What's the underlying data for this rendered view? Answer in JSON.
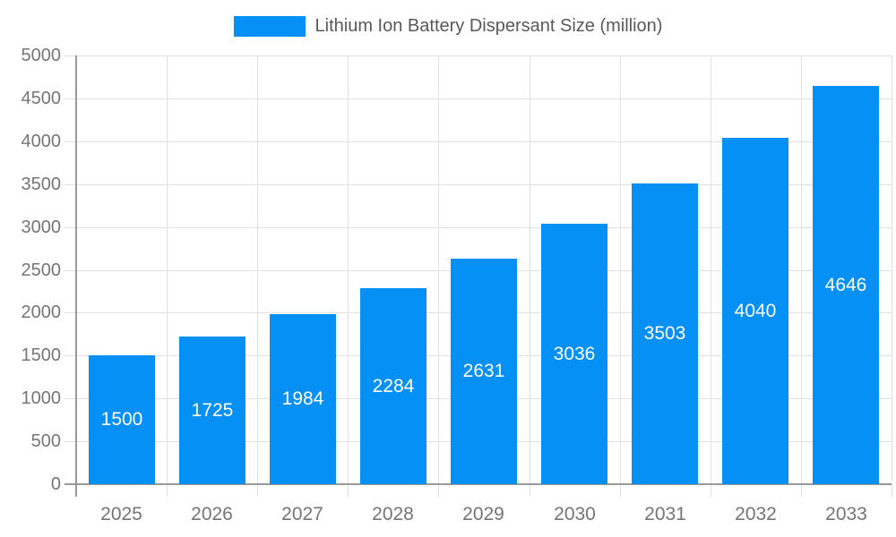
{
  "legend": {
    "label": "Lithium Ion Battery Dispersant Size (million)"
  },
  "chart_data": {
    "type": "bar",
    "title": "Lithium Ion Battery Dispersant Size (million)",
    "categories": [
      "2025",
      "2026",
      "2027",
      "2028",
      "2029",
      "2030",
      "2031",
      "2032",
      "2033"
    ],
    "series": [
      {
        "name": "Lithium Ion Battery Dispersant Size (million)",
        "values": [
          1500,
          1725,
          1984,
          2284,
          2631,
          3036,
          3503,
          4040,
          4646
        ]
      }
    ],
    "value_labels": [
      "1500",
      "1725",
      "1984",
      "2284",
      "2631",
      "3036",
      "3503",
      "4040",
      "4646"
    ],
    "xlabel": "",
    "ylabel": "",
    "ylim": [
      0,
      5000
    ],
    "yticks": [
      0,
      500,
      1000,
      1500,
      2000,
      2500,
      3000,
      3500,
      4000,
      4500,
      5000
    ],
    "grid": true,
    "legend_position": "top-center",
    "colors": {
      "bar": "#0590f5",
      "grid": "#e0e0e0",
      "axis": "#999999",
      "tick_label": "#757575",
      "legend_text": "#595959",
      "value_label": "#ffffff",
      "background": "#ffffff"
    }
  }
}
